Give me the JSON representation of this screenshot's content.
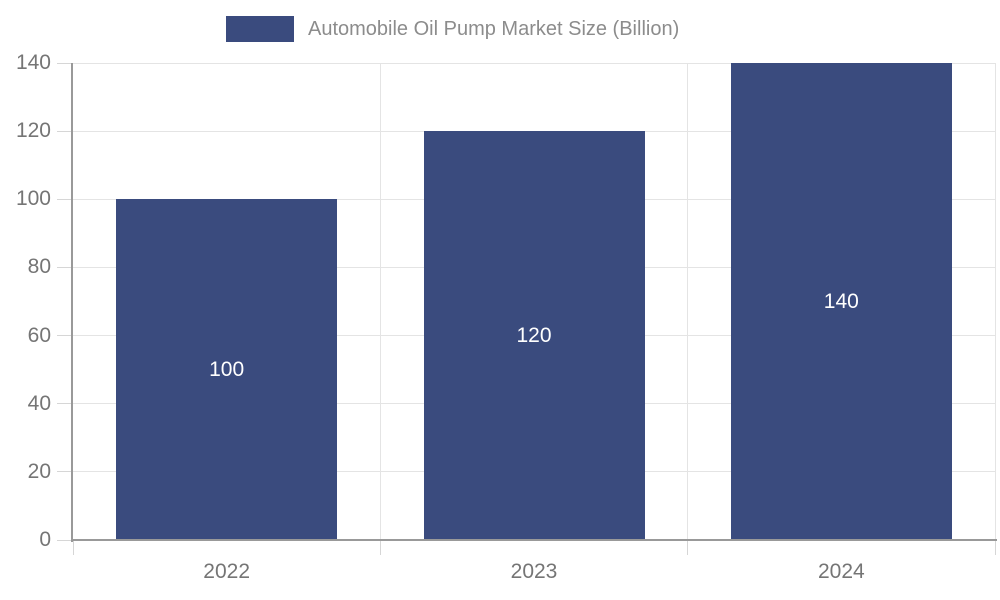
{
  "chart_data": {
    "type": "bar",
    "title": "Automobile Oil Pump Market Size (Billion)",
    "categories": [
      "2022",
      "2023",
      "2024"
    ],
    "series": [
      {
        "name": "Automobile Oil Pump Market Size (Billion)",
        "values": [
          100,
          120,
          140
        ]
      }
    ],
    "bar_value_labels": [
      "100",
      "120",
      "140"
    ],
    "xlabel": "",
    "ylabel": "",
    "ylim": [
      0,
      140
    ],
    "ytick_step": 20,
    "yticks": [
      0,
      20,
      40,
      60,
      80,
      100,
      120,
      140
    ],
    "grid": true,
    "legend_position": "top-center",
    "colors": {
      "bar": "#3a4b7e",
      "bar_value_label": "#ffffff",
      "axis_line": "#999999",
      "gridline": "#e4e4e4",
      "tick_mark": "#d6d6d6",
      "tick_label": "#757575",
      "legend_text": "#8c8c8c",
      "background": "#ffffff"
    }
  }
}
